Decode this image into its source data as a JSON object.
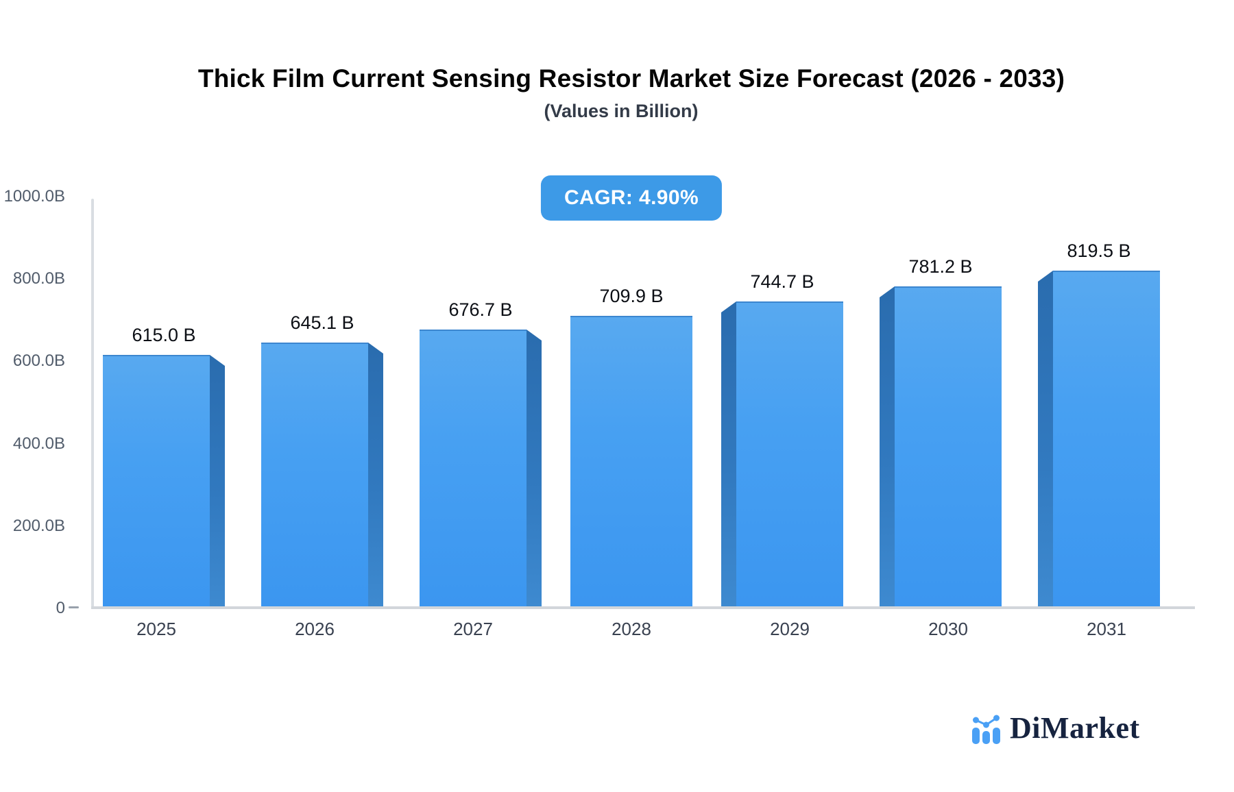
{
  "header": {
    "title": "Thick Film Current Sensing Resistor Market Size Forecast (2026 - 2033)",
    "subtitle": "(Values in Billion)"
  },
  "badge": {
    "label": "CAGR: 4.90%"
  },
  "chart_data": {
    "type": "bar",
    "title": "Thick Film Current Sensing Resistor Market Size Forecast (2026 - 2033)",
    "subtitle": "(Values in Billion)",
    "categories": [
      "2025",
      "2026",
      "2027",
      "2028",
      "2029",
      "2030",
      "2031"
    ],
    "values": [
      615.0,
      645.1,
      676.7,
      709.9,
      744.7,
      781.2,
      819.5
    ],
    "value_labels": [
      "615.0 B",
      "645.1 B",
      "676.7 B",
      "709.9 B",
      "744.7 B",
      "781.2 B",
      "819.5 B"
    ],
    "xlabel": "",
    "ylabel": "",
    "ylim": [
      0,
      1000
    ],
    "yticks": [
      {
        "v": 0,
        "label": "0"
      },
      {
        "v": 200,
        "label": "200.0B"
      },
      {
        "v": 400,
        "label": "400.0B"
      },
      {
        "v": 600,
        "label": "600.0B"
      },
      {
        "v": 800,
        "label": "800.0B"
      },
      {
        "v": 1000,
        "label": "1000.0B"
      }
    ],
    "grid": false,
    "legend": false,
    "bar_style": "3d-perspective"
  },
  "colors": {
    "bar_face": "#47a0f2",
    "bar_side": "#3179bf",
    "badge_bg": "#3d9ae7",
    "badge_text": "#ffffff",
    "axis_line": "#d9dde2",
    "logo_blue": "#4aa0f5",
    "logo_navy": "#16233f"
  },
  "logo": {
    "text": "DiMarket",
    "icon": "bar-chart-with-trendline-icon"
  }
}
